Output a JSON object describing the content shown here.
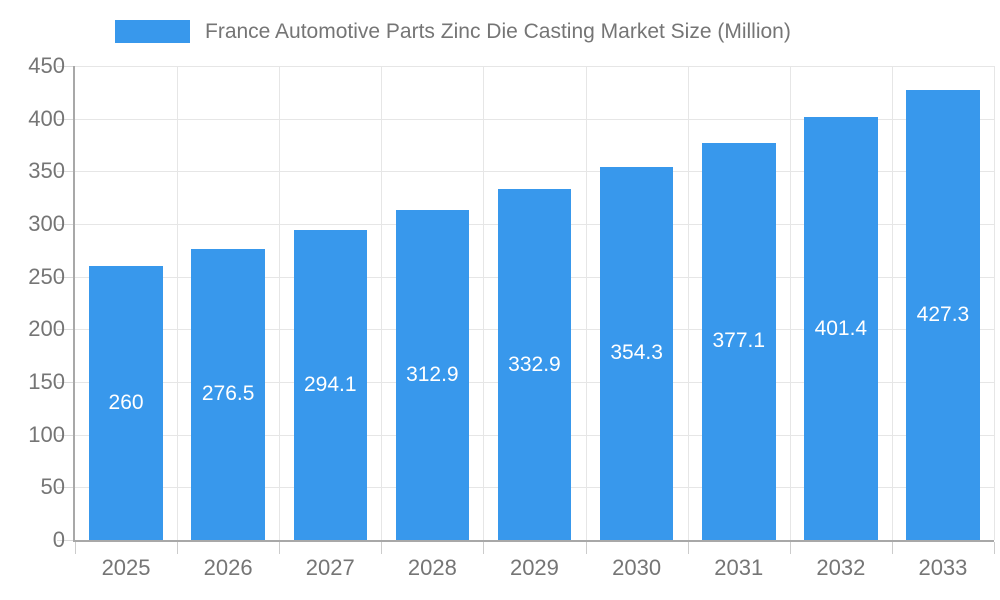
{
  "chart_data": {
    "type": "bar",
    "title": "France Automotive Parts Zinc Die Casting Market Size (Million)",
    "categories": [
      "2025",
      "2026",
      "2027",
      "2028",
      "2029",
      "2030",
      "2031",
      "2032",
      "2033"
    ],
    "values": [
      260,
      276.5,
      294.1,
      312.9,
      332.9,
      354.3,
      377.1,
      401.4,
      427.3
    ],
    "value_labels": [
      "260",
      "276.5",
      "294.1",
      "312.9",
      "332.9",
      "354.3",
      "377.1",
      "401.4",
      "427.3"
    ],
    "xlabel": "",
    "ylabel": "",
    "ylim": [
      0,
      450
    ],
    "ytick_step": 50,
    "ytick_labels": [
      "0",
      "50",
      "100",
      "150",
      "200",
      "250",
      "300",
      "350",
      "400",
      "450"
    ],
    "grid": true,
    "legend_position": "top",
    "colors": {
      "bar": "#3898ec",
      "value_label_text": "#ffffff",
      "axis_text": "#757575",
      "gridline": "#e6e6e6",
      "axis_line": "#a8a8a8",
      "legend_text": "#757575"
    }
  }
}
